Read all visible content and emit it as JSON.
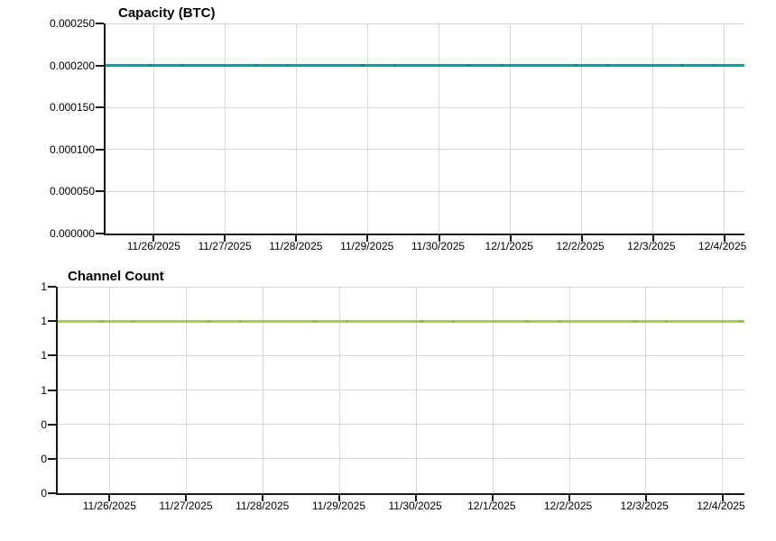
{
  "page": {
    "background_color": "#ffffff",
    "text_color": "#000000"
  },
  "chart_data": [
    {
      "type": "line",
      "title": "Capacity (BTC)",
      "xlabel": "",
      "ylabel": "",
      "x_tick_labels": [
        "11/26/2025",
        "11/27/2025",
        "11/28/2025",
        "11/29/2025",
        "11/30/2025",
        "12/1/2025",
        "12/2/2025",
        "12/3/2025",
        "12/4/2025"
      ],
      "y_tick_values": [
        0.00025,
        0.0002,
        0.00015,
        0.0001,
        5e-05,
        0
      ],
      "y_tick_labels": [
        "0.000250",
        "0.000200",
        "0.000150",
        "0.000100",
        "0.000050",
        "0.000000"
      ],
      "ylim": [
        0,
        0.00025
      ],
      "series": [
        {
          "name": "Capacity (BTC)",
          "constant_value": 0.0002,
          "color": "#149b9f",
          "marker_color": "#0c8489",
          "shape": "flat horizontal line spanning full date range at 0.0002 BTC"
        }
      ],
      "grid": true,
      "legend_position": "none",
      "axis_color": "#1a1a1a",
      "grid_color": "#d8d8d8",
      "layout": {
        "x_first_frac": 0.0755,
        "x_step_frac": 0.1116
      }
    },
    {
      "type": "line",
      "title": "Channel Count",
      "xlabel": "",
      "ylabel": "",
      "x_tick_labels": [
        "11/26/2025",
        "11/27/2025",
        "11/28/2025",
        "11/29/2025",
        "11/30/2025",
        "12/1/2025",
        "12/2/2025",
        "12/3/2025",
        "12/4/2025"
      ],
      "y_tick_values": [
        1.2,
        1.0,
        0.8,
        0.6,
        0.4,
        0.2,
        0
      ],
      "y_tick_labels": [
        "1",
        "1",
        "1",
        "1",
        "0",
        "0",
        "0"
      ],
      "ylim": [
        0,
        1.2
      ],
      "series": [
        {
          "name": "Channel Count",
          "constant_value": 1,
          "color": "#a6d045",
          "marker_color": "#93c032",
          "shape": "flat horizontal line spanning full date range at 1 channel"
        }
      ],
      "grid": true,
      "legend_position": "none",
      "axis_color": "#1a1a1a",
      "grid_color": "#d8d8d8",
      "layout": {
        "x_first_frac": 0.0755,
        "x_step_frac": 0.1116
      }
    }
  ]
}
